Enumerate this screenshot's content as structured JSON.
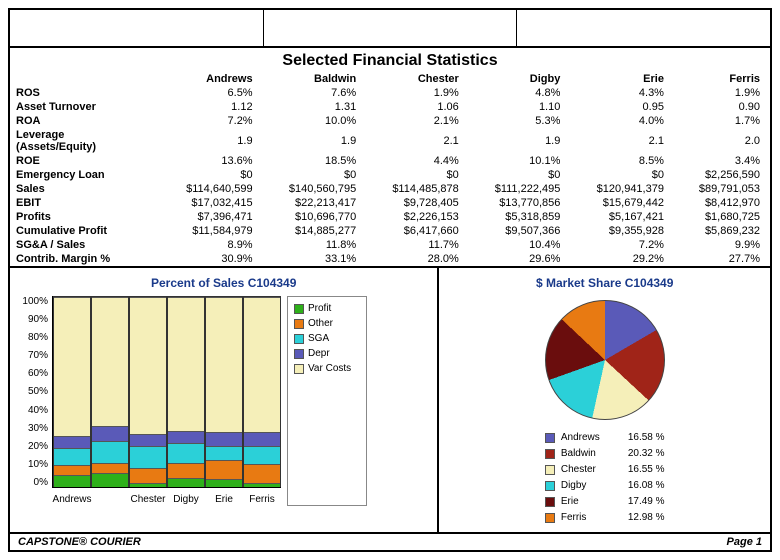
{
  "title": "Selected Financial Statistics",
  "companies": [
    "Andrews",
    "Baldwin",
    "Chester",
    "Digby",
    "Erie",
    "Ferris"
  ],
  "rows": [
    {
      "label": "ROS",
      "vals": [
        "6.5%",
        "7.6%",
        "1.9%",
        "4.8%",
        "4.3%",
        "1.9%"
      ]
    },
    {
      "label": "Asset Turnover",
      "vals": [
        "1.12",
        "1.31",
        "1.06",
        "1.10",
        "0.95",
        "0.90"
      ]
    },
    {
      "label": "ROA",
      "vals": [
        "7.2%",
        "10.0%",
        "2.1%",
        "5.3%",
        "4.0%",
        "1.7%"
      ]
    },
    {
      "label": "Leverage\n(Assets/Equity)",
      "vals": [
        "1.9",
        "1.9",
        "2.1",
        "1.9",
        "2.1",
        "2.0"
      ]
    },
    {
      "label": "ROE",
      "vals": [
        "13.6%",
        "18.5%",
        "4.4%",
        "10.1%",
        "8.5%",
        "3.4%"
      ]
    },
    {
      "label": "Emergency Loan",
      "vals": [
        "$0",
        "$0",
        "$0",
        "$0",
        "$0",
        "$2,256,590"
      ]
    },
    {
      "label": "Sales",
      "vals": [
        "$114,640,599",
        "$140,560,795",
        "$114,485,878",
        "$111,222,495",
        "$120,941,379",
        "$89,791,053"
      ]
    },
    {
      "label": "EBIT",
      "vals": [
        "$17,032,415",
        "$22,213,417",
        "$9,728,405",
        "$13,770,856",
        "$15,679,442",
        "$8,412,970"
      ]
    },
    {
      "label": "Profits",
      "vals": [
        "$7,396,471",
        "$10,696,770",
        "$2,226,153",
        "$5,318,859",
        "$5,167,421",
        "$1,680,725"
      ]
    },
    {
      "label": "Cumulative Profit",
      "vals": [
        "$11,584,979",
        "$14,885,277",
        "$6,417,660",
        "$9,507,366",
        "$9,355,928",
        "$5,869,232"
      ]
    },
    {
      "label": "SG&A / Sales",
      "vals": [
        "8.9%",
        "11.8%",
        "11.7%",
        "10.4%",
        "7.2%",
        "9.9%"
      ]
    },
    {
      "label": "Contrib. Margin %",
      "vals": [
        "30.9%",
        "33.1%",
        "28.0%",
        "29.6%",
        "29.2%",
        "27.7%"
      ]
    }
  ],
  "barChart": {
    "title": "Percent of Sales  C104349",
    "type": "stacked-bar",
    "ylim": [
      0,
      100
    ],
    "ytick_step": 10,
    "categories": [
      "Andrews",
      "Baldwin",
      "Chester",
      "Digby",
      "Erie",
      "Ferris"
    ],
    "xShown": [
      "Andrews",
      "",
      "Chester",
      "Digby",
      "Erie",
      "Ferris"
    ],
    "series": [
      {
        "name": "Profit",
        "color": "#2eb01a"
      },
      {
        "name": "Other",
        "color": "#e87a12"
      },
      {
        "name": "SGA",
        "color": "#2bd0d8"
      },
      {
        "name": "Depr",
        "color": "#5a5ab8"
      },
      {
        "name": "Var Costs",
        "color": "#f5efb9"
      }
    ],
    "stacks": [
      [
        6.5,
        5.0,
        8.9,
        6.6,
        73.0
      ],
      [
        7.6,
        5.0,
        11.8,
        7.5,
        68.1
      ],
      [
        1.9,
        8.0,
        11.7,
        6.4,
        72.0
      ],
      [
        4.8,
        8.0,
        10.4,
        6.4,
        70.4
      ],
      [
        4.3,
        10.0,
        7.2,
        7.7,
        70.8
      ],
      [
        1.9,
        10.0,
        9.9,
        6.9,
        71.3
      ]
    ]
  },
  "pieChart": {
    "title": "$ Market Share  C104349",
    "type": "pie",
    "slices": [
      {
        "label": "Andrews",
        "value": 16.58,
        "color": "#5a5ab8"
      },
      {
        "label": "Baldwin",
        "value": 20.32,
        "color": "#a02418"
      },
      {
        "label": "Chester",
        "value": 16.55,
        "color": "#f5efb9"
      },
      {
        "label": "Digby",
        "value": 16.08,
        "color": "#2bd0d8"
      },
      {
        "label": "Erie",
        "value": 17.49,
        "color": "#6a0d0d"
      },
      {
        "label": "Ferris",
        "value": 12.98,
        "color": "#e87a12"
      }
    ]
  },
  "footer": {
    "left": "CAPSTONE® COURIER",
    "right": "Page 1"
  }
}
